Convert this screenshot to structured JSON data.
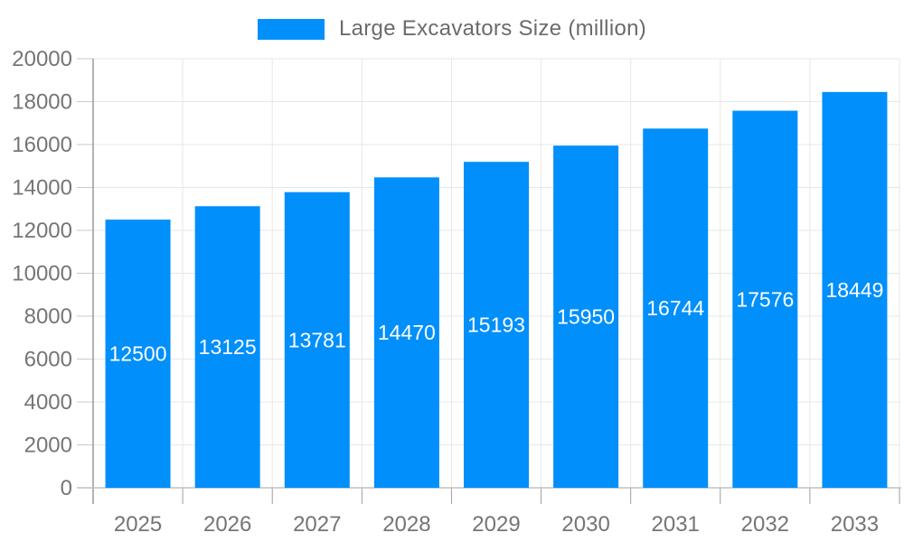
{
  "chart_data": {
    "type": "bar",
    "title": "",
    "legend": {
      "position": "top",
      "label": "Large Excavators Size (million)"
    },
    "categories": [
      "2025",
      "2026",
      "2027",
      "2028",
      "2029",
      "2030",
      "2031",
      "2032",
      "2033"
    ],
    "series": [
      {
        "name": "Large Excavators Size (million)",
        "values": [
          12500,
          13125,
          13781,
          14470,
          15193,
          15950,
          16744,
          17576,
          18449
        ]
      }
    ],
    "data_labels": [
      "12500",
      "13125",
      "13781",
      "14470",
      "15193",
      "15950",
      "16744",
      "17576",
      "18449"
    ],
    "y_tick_labels": [
      "0",
      "2000",
      "4000",
      "6000",
      "8000",
      "10000",
      "12000",
      "14000",
      "16000",
      "18000",
      "20000"
    ],
    "ylim": [
      0,
      20000
    ],
    "ytick_step": 2000,
    "grid": true,
    "xlabel": "",
    "ylabel": "",
    "colors": {
      "bar": "#008FFB",
      "grid": "#e7e7e7",
      "axis_y": "#9a9a9a",
      "axis_x": "#c2c2c2",
      "tick_y": "#c9c9c9",
      "tick_x": "#9e9e9e",
      "axis_text": "#757575",
      "value_text": "#ffffff",
      "legend_text": "#6b6b6b",
      "background": "#ffffff"
    }
  }
}
